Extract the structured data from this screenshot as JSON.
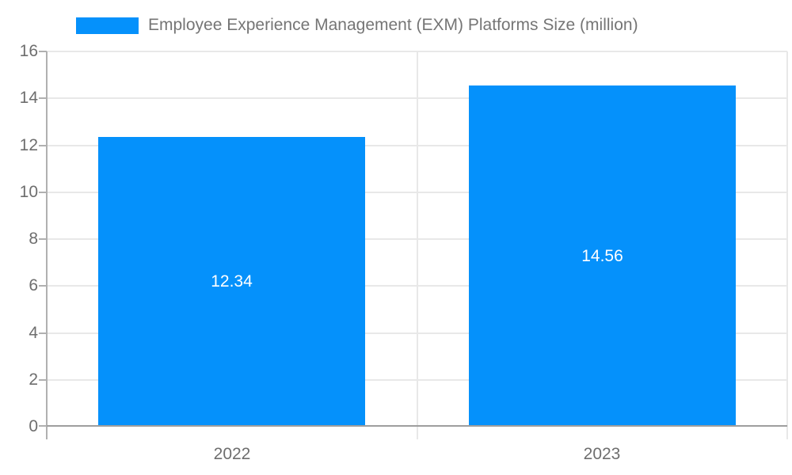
{
  "legend": {
    "label": "Employee Experience Management (EXM) Platforms Size (million)",
    "swatch_color": "#0591fb"
  },
  "chart_data": {
    "type": "bar",
    "title": "Employee Experience Management (EXM) Platforms Size (million)",
    "categories": [
      "2022",
      "2023"
    ],
    "series": [
      {
        "name": "Employee Experience Management (EXM) Platforms Size (million)",
        "values": [
          12.34,
          14.56
        ],
        "value_labels": [
          "12.34",
          "14.56"
        ],
        "color": "#0591fb"
      }
    ],
    "xlabel": "",
    "ylabel": "",
    "ylim": [
      0,
      16
    ],
    "yticks": [
      0,
      2,
      4,
      6,
      8,
      10,
      12,
      14,
      16
    ],
    "grid": true,
    "legend_position": "top-left",
    "value_label_position": "center",
    "value_label_color": "#ffffff"
  },
  "colors": {
    "bar": "#0591fb",
    "gridline": "#e8e8e8",
    "axis_line": "#b0b0b0",
    "baseline": "#9e9e9e",
    "tick_label": "#6e6e6e",
    "legend_text": "#757575"
  }
}
